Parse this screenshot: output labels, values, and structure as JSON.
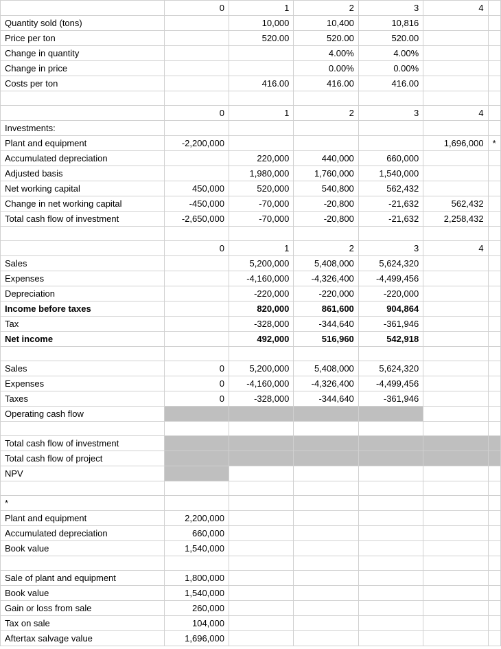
{
  "colors": {
    "grid": "#d0d0d0",
    "shade": "#bfbfbf",
    "text": "#000000",
    "bg": "#ffffff"
  },
  "rows": [
    {
      "cells": [
        "",
        "0",
        "1",
        "2",
        "3",
        "4",
        ""
      ]
    },
    {
      "cells": [
        "Quantity sold (tons)",
        "",
        "10,000",
        "10,400",
        "10,816",
        "",
        ""
      ]
    },
    {
      "cells": [
        "Price per ton",
        "",
        "520.00",
        "520.00",
        "520.00",
        "",
        ""
      ]
    },
    {
      "cells": [
        "Change in quantity",
        "",
        "",
        "4.00%",
        "4.00%",
        "",
        ""
      ]
    },
    {
      "cells": [
        "Change in price",
        "",
        "",
        "0.00%",
        "0.00%",
        "",
        ""
      ]
    },
    {
      "cells": [
        "Costs per ton",
        "",
        "416.00",
        "416.00",
        "416.00",
        "",
        ""
      ]
    },
    {
      "cells": [
        "",
        "",
        "",
        "",
        "",
        "",
        ""
      ]
    },
    {
      "cells": [
        "",
        "0",
        "1",
        "2",
        "3",
        "4",
        ""
      ]
    },
    {
      "cells": [
        "Investments:",
        "",
        "",
        "",
        "",
        "",
        ""
      ]
    },
    {
      "cells": [
        "Plant and equipment",
        "-2,200,000",
        "",
        "",
        "",
        "1,696,000",
        "*"
      ]
    },
    {
      "cells": [
        "Accumulated depreciation",
        "",
        "220,000",
        "440,000",
        "660,000",
        "",
        ""
      ]
    },
    {
      "cells": [
        "Adjusted basis",
        "",
        "1,980,000",
        "1,760,000",
        "1,540,000",
        "",
        ""
      ]
    },
    {
      "cells": [
        "Net working capital",
        "450,000",
        "520,000",
        "540,800",
        "562,432",
        "",
        ""
      ]
    },
    {
      "cells": [
        "Change in net working capital",
        "-450,000",
        "-70,000",
        "-20,800",
        "-21,632",
        "562,432",
        ""
      ]
    },
    {
      "cells": [
        "Total cash flow of investment",
        "-2,650,000",
        "-70,000",
        "-20,800",
        "-21,632",
        "2,258,432",
        ""
      ]
    },
    {
      "cells": [
        "",
        "",
        "",
        "",
        "",
        "",
        ""
      ]
    },
    {
      "cells": [
        "",
        "0",
        "1",
        "2",
        "3",
        "4",
        ""
      ]
    },
    {
      "cells": [
        "Sales",
        "",
        "5,200,000",
        "5,408,000",
        "5,624,320",
        "",
        ""
      ]
    },
    {
      "cells": [
        "Expenses",
        "",
        "-4,160,000",
        "-4,326,400",
        "-4,499,456",
        "",
        ""
      ]
    },
    {
      "cells": [
        "Depreciation",
        "",
        "-220,000",
        "-220,000",
        "-220,000",
        "",
        ""
      ]
    },
    {
      "cells": [
        "Income before taxes",
        "",
        "820,000",
        "861,600",
        "904,864",
        "",
        ""
      ],
      "bold": true
    },
    {
      "cells": [
        "Tax",
        "",
        "-328,000",
        "-344,640",
        "-361,946",
        "",
        ""
      ]
    },
    {
      "cells": [
        "Net income",
        "",
        "492,000",
        "516,960",
        "542,918",
        "",
        ""
      ],
      "bold": true
    },
    {
      "cells": [
        "",
        "",
        "",
        "",
        "",
        "",
        ""
      ]
    },
    {
      "cells": [
        "Sales",
        "0",
        "5,200,000",
        "5,408,000",
        "5,624,320",
        "",
        ""
      ]
    },
    {
      "cells": [
        "Expenses",
        "0",
        "-4,160,000",
        "-4,326,400",
        "-4,499,456",
        "",
        ""
      ]
    },
    {
      "cells": [
        "Taxes",
        "0",
        "-328,000",
        "-344,640",
        "-361,946",
        "",
        ""
      ]
    },
    {
      "cells": [
        "Operating cash flow",
        "",
        "",
        "",
        "",
        "",
        ""
      ],
      "shade": [
        1,
        2,
        3,
        4
      ]
    },
    {
      "cells": [
        "",
        "",
        "",
        "",
        "",
        "",
        ""
      ]
    },
    {
      "cells": [
        "Total cash flow of investment",
        "",
        "",
        "",
        "",
        "",
        ""
      ],
      "shade": [
        1,
        2,
        3,
        4,
        5,
        6
      ]
    },
    {
      "cells": [
        "Total cash flow of project",
        "",
        "",
        "",
        "",
        "",
        ""
      ],
      "shade": [
        1,
        2,
        3,
        4,
        5,
        6
      ]
    },
    {
      "cells": [
        "NPV",
        "",
        "",
        "",
        "",
        "",
        ""
      ],
      "shade": [
        1
      ]
    },
    {
      "cells": [
        "",
        "",
        "",
        "",
        "",
        "",
        ""
      ]
    },
    {
      "cells": [
        "*",
        "",
        "",
        "",
        "",
        "",
        ""
      ]
    },
    {
      "cells": [
        "Plant and equipment",
        "2,200,000",
        "",
        "",
        "",
        "",
        ""
      ]
    },
    {
      "cells": [
        "Accumulated depreciation",
        "660,000",
        "",
        "",
        "",
        "",
        ""
      ]
    },
    {
      "cells": [
        "Book value",
        "1,540,000",
        "",
        "",
        "",
        "",
        ""
      ]
    },
    {
      "cells": [
        "",
        "",
        "",
        "",
        "",
        "",
        ""
      ]
    },
    {
      "cells": [
        "Sale of plant and equipment",
        "1,800,000",
        "",
        "",
        "",
        "",
        ""
      ]
    },
    {
      "cells": [
        "Book value",
        "1,540,000",
        "",
        "",
        "",
        "",
        ""
      ]
    },
    {
      "cells": [
        "Gain or loss from sale",
        "260,000",
        "",
        "",
        "",
        "",
        ""
      ]
    },
    {
      "cells": [
        "Tax on sale",
        "104,000",
        "",
        "",
        "",
        "",
        ""
      ]
    },
    {
      "cells": [
        "Aftertax salvage value",
        "1,696,000",
        "",
        "",
        "",
        "",
        ""
      ]
    }
  ]
}
